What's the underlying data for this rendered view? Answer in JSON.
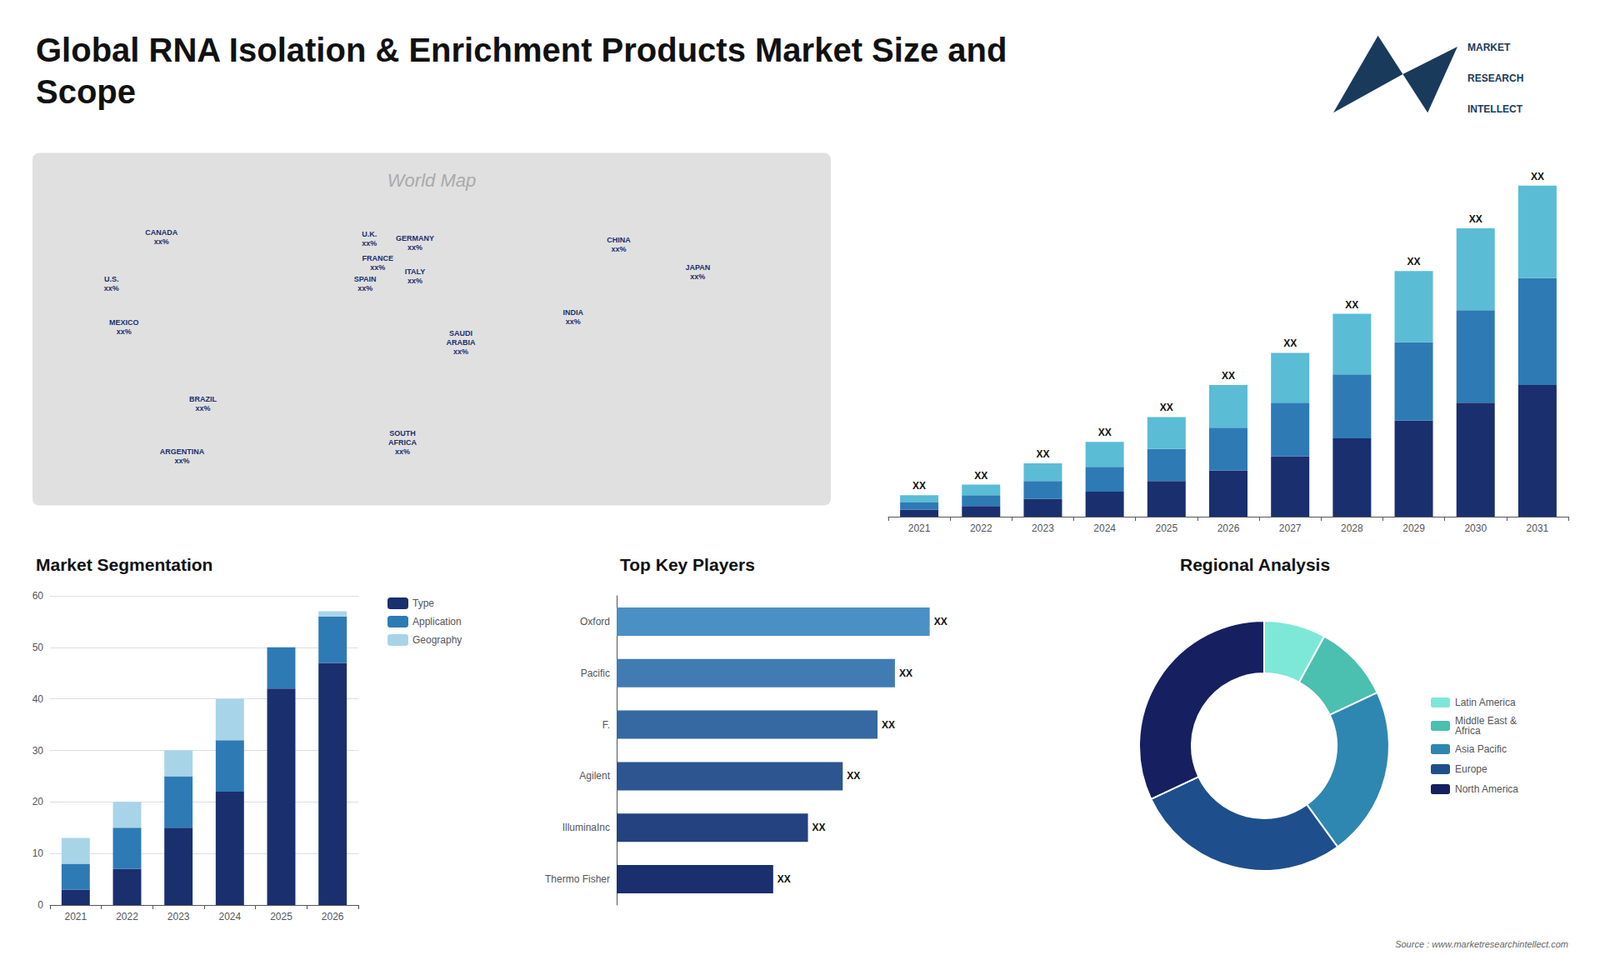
{
  "chart_data": [
    {
      "type": "bar",
      "title": "Global RNA Isolation & Enrichment Products Market Size and\nScope",
      "stacked": true,
      "tick_labels": "x",
      "categories": [
        "2021",
        "2022",
        "2023",
        "2024",
        "2025",
        "2026",
        "2027",
        "2028",
        "2029",
        "2030",
        "2031"
      ],
      "series": [
        {
          "color": "#1a2f6e",
          "values": [
            2,
            3,
            5,
            7,
            10,
            13,
            17,
            22,
            27,
            32,
            37
          ]
        },
        {
          "color": "#2e7ab5",
          "values": [
            2,
            3,
            5,
            7,
            9,
            12,
            15,
            18,
            22,
            26,
            30
          ]
        },
        {
          "color": "#5bbcd6",
          "values": [
            2,
            3,
            5,
            7,
            9,
            12,
            14,
            17,
            20,
            23,
            26
          ],
          "value_labels": [
            "XX",
            "XX",
            "XX",
            "XX",
            "XX",
            "XX",
            "XX",
            "XX",
            "XX",
            "XX",
            "XX"
          ]
        }
      ],
      "ylim": [
        0,
        103
      ],
      "annotations": [
        "MARKET",
        "RESEARCH",
        "INTELLECT",
        "Source : www.marketresearchintellect.com"
      ]
    },
    {
      "type": "map",
      "annotations": [
        "World Map",
        "CANADA\nxx%",
        "U.S.\nxx%",
        "MEXICO\nxx%",
        "BRAZIL\nxx%",
        "ARGENTINA\nxx%",
        "U.K.\nxx%",
        "FRANCE\nxx%",
        "SPAIN\nxx%",
        "GERMANY\nxx%",
        "ITALY\nxx%",
        "SAUDI\nARABIA\nxx%",
        "SOUTH\nAFRICA\nxx%",
        "CHINA\nxx%",
        "INDIA\nxx%",
        "JAPAN\nxx%"
      ]
    },
    {
      "type": "bar",
      "title": "Market Segmentation",
      "stacked": true,
      "categories": [
        "2021",
        "2022",
        "2023",
        "2024",
        "2025",
        "2026"
      ],
      "series": [
        {
          "name": "Type",
          "color": "#1a2f6e",
          "values": [
            3,
            7,
            15,
            22,
            42,
            47
          ]
        },
        {
          "name": "Application",
          "color": "#2e7ab5",
          "values": [
            5,
            8,
            10,
            10,
            8,
            9
          ]
        },
        {
          "name": "Geography",
          "color": "#a8d4e8",
          "values": [
            5,
            5,
            5,
            8,
            0,
            1
          ]
        }
      ],
      "ylim": [
        0,
        60
      ],
      "yticks": [
        0,
        10,
        20,
        30,
        40,
        50,
        60
      ],
      "grid": true,
      "legend": "right"
    },
    {
      "type": "bar",
      "title": "Top Key Players",
      "orientation": "horizontal",
      "tick_labels": "y",
      "categories": [
        "Oxford",
        "Pacific",
        "F.",
        "Agilent",
        "IlluminaInc",
        "Thermo Fisher"
      ],
      "values": [
        90,
        80,
        75,
        65,
        55,
        45
      ],
      "value_labels": [
        "XX",
        "XX",
        "XX",
        "XX",
        "XX",
        "XX"
      ],
      "colors": [
        "#4a90c4",
        "#407cb2",
        "#3669a1",
        "#2d5590",
        "#23427f",
        "#1a2f6e"
      ],
      "xlim": [
        0,
        115
      ]
    },
    {
      "type": "donut",
      "title": "Regional Analysis",
      "categories": [
        "Latin America",
        "Middle East &\nAfrica",
        "Asia Pacific",
        "Europe",
        "North America"
      ],
      "values": [
        8,
        10,
        22,
        28,
        32
      ],
      "colors": [
        "#7de8d8",
        "#4bbfb0",
        "#2e87b0",
        "#1e4f8c",
        "#162060"
      ],
      "legend": "right"
    }
  ]
}
